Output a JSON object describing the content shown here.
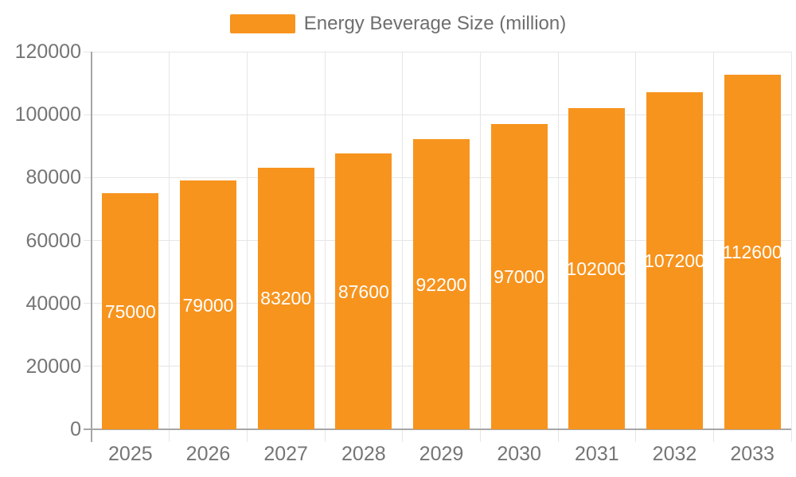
{
  "legend": {
    "label": "Energy Beverage Size (million)"
  },
  "chart_data": {
    "type": "bar",
    "title": "Energy Beverage Size (million)",
    "categories": [
      "2025",
      "2026",
      "2027",
      "2028",
      "2029",
      "2030",
      "2031",
      "2032",
      "2033"
    ],
    "values": [
      75000,
      79000,
      83200,
      87600,
      92200,
      97000,
      102000,
      107200,
      112600
    ],
    "bar_labels": [
      "75000",
      "79000",
      "83200",
      "87600",
      "92200",
      "97000",
      "102000",
      "107200",
      "112600"
    ],
    "series_name": "Energy Beverage Size (million)",
    "xlabel": "",
    "ylabel": "",
    "ylim": [
      0,
      120000
    ],
    "yticks": [
      0,
      20000,
      40000,
      60000,
      80000,
      100000,
      120000
    ],
    "ytick_labels": [
      "0",
      "20000",
      "40000",
      "60000",
      "80000",
      "100000",
      "120000"
    ],
    "grid": true,
    "legend_position": "top-center",
    "bar_label_position": "center-inside",
    "colors": {
      "bar": "#f7941e",
      "bar_label": "#ffffff",
      "grid_line": "#e6e6e6",
      "axis_line": "#a6a6a6",
      "tick_label": "#757575",
      "legend_text": "#6e6e6e"
    }
  }
}
